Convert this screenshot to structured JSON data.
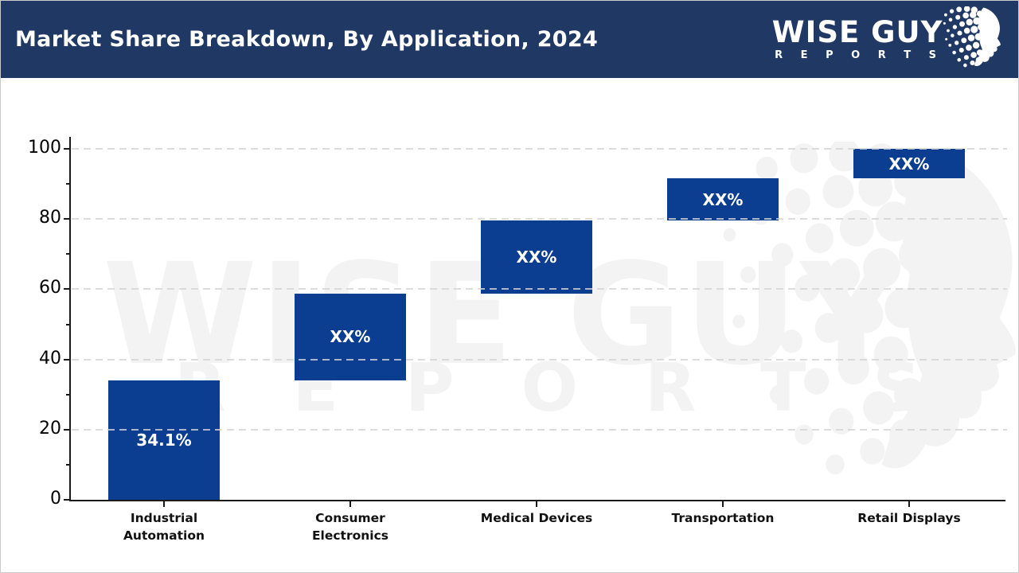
{
  "header": {
    "title": "Market Share Breakdown, By Application, 2024",
    "logo": {
      "name": "WISE GUY",
      "sub": "R E P O R T S"
    }
  },
  "watermark": {
    "line1": "WISE GUY",
    "line2": "REPORTS"
  },
  "chart_data": {
    "type": "bar",
    "subtype": "waterfall",
    "title": "Market Share Breakdown, By Application, 2024",
    "categories": [
      "Industrial\nAutomation",
      "Consumer\nElectronics",
      "Medical Devices",
      "Transportation",
      "Retail Displays"
    ],
    "segments": [
      {
        "category": "Industrial Automation",
        "start": 0,
        "end": 34.1,
        "label": "34.1%"
      },
      {
        "category": "Consumer Electronics",
        "start": 34.1,
        "end": 58.7,
        "label": "XX%"
      },
      {
        "category": "Medical Devices",
        "start": 58.7,
        "end": 79.5,
        "label": "XX%"
      },
      {
        "category": "Transportation",
        "start": 79.5,
        "end": 91.6,
        "label": "XX%"
      },
      {
        "category": "Retail Displays",
        "start": 91.6,
        "end": 100,
        "label": "XX%"
      }
    ],
    "xlabel": "",
    "ylabel": "",
    "ylim": [
      0,
      100
    ],
    "yticks": [
      0,
      20,
      40,
      60,
      80,
      100
    ],
    "yticks_minor": [
      10,
      30,
      50,
      70,
      90
    ],
    "grid": "horizontal dashed at major y ticks",
    "legend": "none",
    "colors": {
      "header_bg": "#203864",
      "bar": "#0b3d90",
      "bar_label": "#ffffff",
      "grid": "#d4d4d4",
      "axis": "#1a1a1a",
      "watermark": "#f3f3f3"
    }
  }
}
